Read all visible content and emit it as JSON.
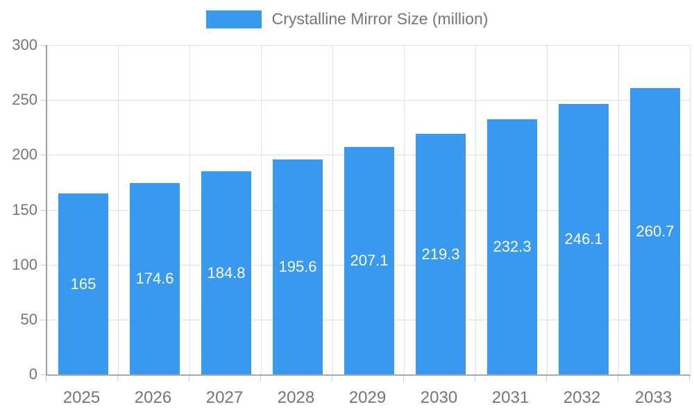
{
  "chart_data": {
    "type": "bar",
    "title": "Crystalline Mirror Size (million)",
    "categories": [
      "2025",
      "2026",
      "2027",
      "2028",
      "2029",
      "2030",
      "2031",
      "2032",
      "2033"
    ],
    "values": [
      165,
      174.6,
      184.8,
      195.6,
      207.1,
      219.3,
      232.3,
      246.1,
      260.7
    ],
    "value_labels": [
      "165",
      "174.6",
      "184.8",
      "195.6",
      "207.1",
      "219.3",
      "232.3",
      "246.1",
      "260.7"
    ],
    "xlabel": "",
    "ylabel": "",
    "ylim": [
      0,
      300
    ],
    "yticks": [
      0,
      50,
      100,
      150,
      200,
      250,
      300
    ],
    "grid": true,
    "legend_position": "top-center"
  },
  "colors": {
    "bar": "#3999ee",
    "value_label": "#ffffff",
    "axis_line": "#9e9e9e",
    "gridline": "#e0e0e0",
    "tick_mark": "#cccccc",
    "tick_label": "#757575",
    "legend_text": "#757575",
    "background": "#ffffff"
  }
}
